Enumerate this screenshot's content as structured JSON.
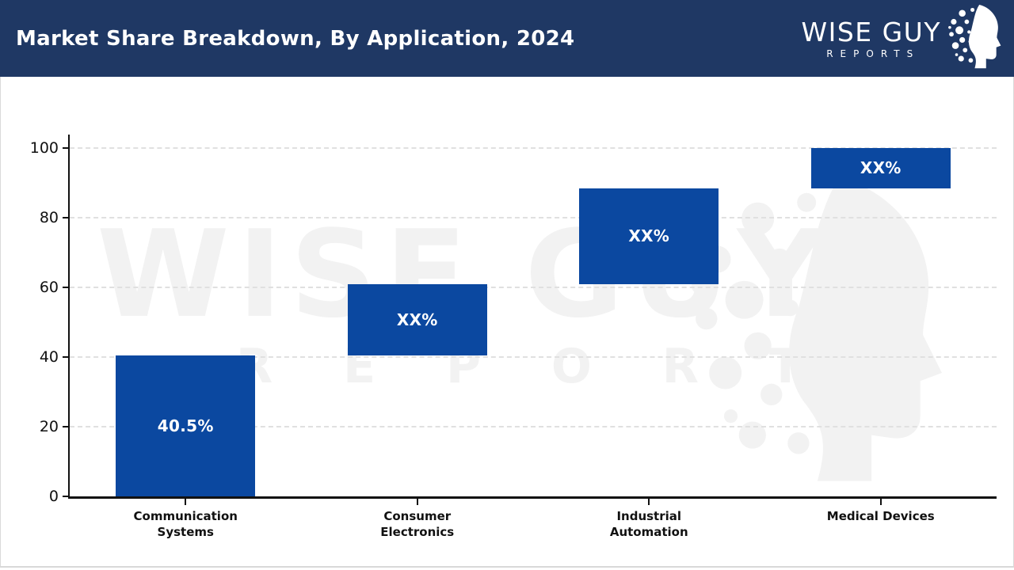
{
  "header": {
    "title": "Market Share Breakdown, By Application, 2024",
    "bg_color": "#1f3864",
    "logo": {
      "line1": "WISE GUY",
      "line2": "REPORTS"
    }
  },
  "watermark": {
    "line1": "WISE GUY",
    "line2": "R E P O R T S"
  },
  "chart_data": {
    "type": "bar",
    "subtype": "waterfall",
    "title": "Market Share Breakdown, By Application, 2024",
    "categories": [
      [
        "Communication",
        "Systems"
      ],
      [
        "Consumer",
        "Electronics"
      ],
      [
        "Industrial",
        "Automation"
      ],
      [
        "Medical Devices"
      ]
    ],
    "segments": [
      {
        "category": "Communication Systems",
        "label": "40.5%",
        "start": 0,
        "end": 40.5
      },
      {
        "category": "Consumer Electronics",
        "label": "XX%",
        "start": 40.5,
        "end": 61
      },
      {
        "category": "Industrial Automation",
        "label": "XX%",
        "start": 61,
        "end": 88.5
      },
      {
        "category": "Medical Devices",
        "label": "XX%",
        "start": 88.5,
        "end": 100
      }
    ],
    "yticks": [
      0,
      20,
      40,
      60,
      80,
      100
    ],
    "ylim": [
      0,
      104
    ],
    "xlabel": "",
    "ylabel": "",
    "grid": "horizontal-dashed",
    "legend": "none",
    "bar_color": "#0b48a0",
    "bar_label_color": "#ffffff",
    "axis_color": "#111111"
  }
}
